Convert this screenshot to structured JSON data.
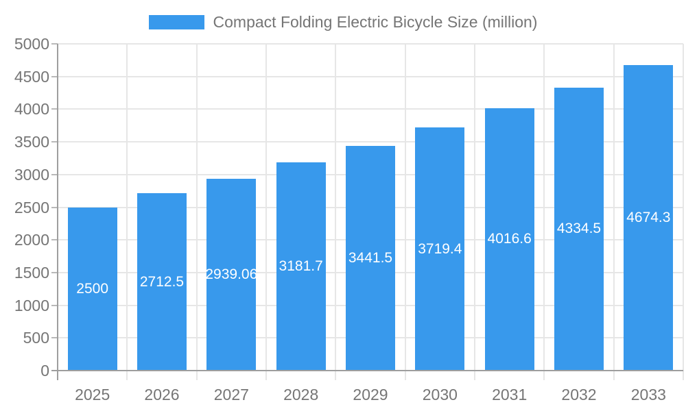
{
  "chart_data": {
    "type": "bar",
    "title": "Compact Folding Electric Bicycle Size (million)",
    "categories": [
      "2025",
      "2026",
      "2027",
      "2028",
      "2029",
      "2030",
      "2031",
      "2032",
      "2033"
    ],
    "series": [
      {
        "name": "Compact Folding Electric Bicycle Size (million)",
        "values": [
          2500,
          2712.5,
          2939.06,
          3181.7,
          3441.5,
          3719.4,
          4016.6,
          4334.5,
          4674.3
        ],
        "value_labels": [
          "2500",
          "2712.5",
          "2939.06",
          "3181.7",
          "3441.5",
          "3719.4",
          "4016.6",
          "4334.5",
          "4674.3"
        ]
      }
    ],
    "xlabel": "",
    "ylabel": "",
    "ylim": [
      0,
      5000
    ],
    "yticks": [
      0,
      500,
      1000,
      1500,
      2000,
      2500,
      3000,
      3500,
      4000,
      4500,
      5000
    ],
    "legend_position": "top-center",
    "grid": true,
    "value_labels_position": "inside-center",
    "colors": {
      "bar": "#3899EC",
      "grid_line": "#E6E6E6",
      "axis_line": "#9E9E9E",
      "tick": "#B9B9B9",
      "axis_text": "#757575",
      "bar_label_text": "#FFFFFF",
      "background": "#FFFFFF"
    }
  }
}
